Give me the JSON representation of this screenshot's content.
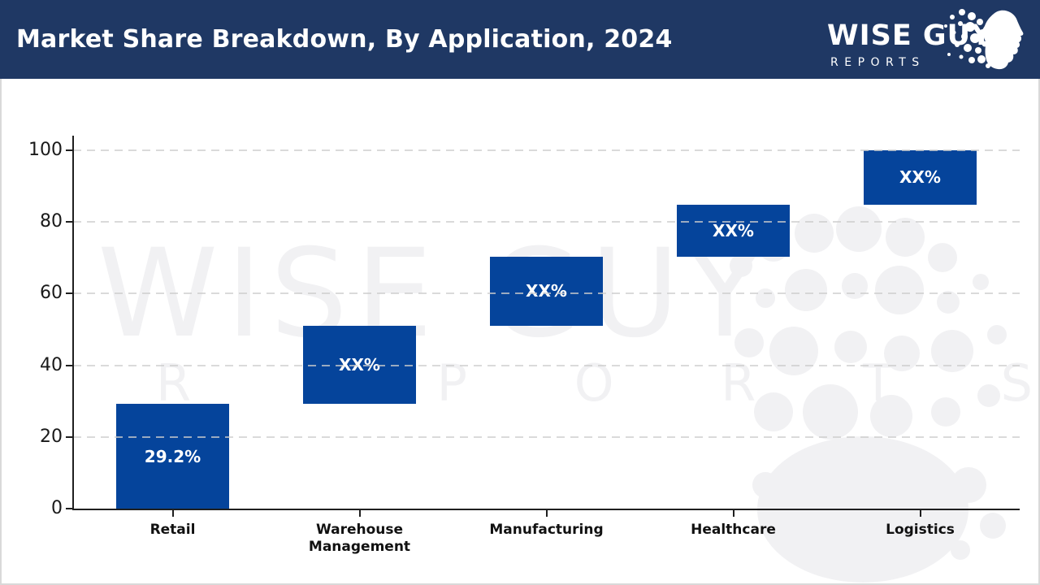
{
  "header": {
    "title": "Market Share Breakdown, By Application, 2024",
    "logo": {
      "line1": "WISE GUY",
      "line2": "R E P O R T S"
    }
  },
  "watermark": {
    "line1": "WISE GUY",
    "line2": "R E P O R T S"
  },
  "colors": {
    "header_bg": "#1f3864",
    "bar_blue": "#05449b",
    "bar_label": "#ffffff",
    "axis": "#1f1f1f",
    "grid": "#d9d9d9",
    "watermark": "#f1f1f3"
  },
  "chart_data": {
    "type": "bar",
    "subtype": "waterfall",
    "title": "Market Share Breakdown, By Application, 2024",
    "xlabel": "",
    "ylabel": "",
    "ylim": [
      0,
      105
    ],
    "grid": "dashed-horizontal",
    "legend": "none",
    "categories": [
      "Retail",
      "Warehouse Management",
      "Manufacturing",
      "Healthcare",
      "Logistics"
    ],
    "y_ticks": [
      0,
      20,
      40,
      60,
      80,
      100
    ],
    "segments": [
      {
        "category": "Retail",
        "start": 0,
        "end": 29.2,
        "label": "29.2%"
      },
      {
        "category": "Warehouse Management",
        "start": 29.2,
        "end": 51.0,
        "label": "XX%"
      },
      {
        "category": "Manufacturing",
        "start": 51.0,
        "end": 70.4,
        "label": "XX%"
      },
      {
        "category": "Healthcare",
        "start": 70.4,
        "end": 84.9,
        "label": "XX%"
      },
      {
        "category": "Logistics",
        "start": 84.9,
        "end": 100.0,
        "label": "XX%"
      }
    ]
  }
}
